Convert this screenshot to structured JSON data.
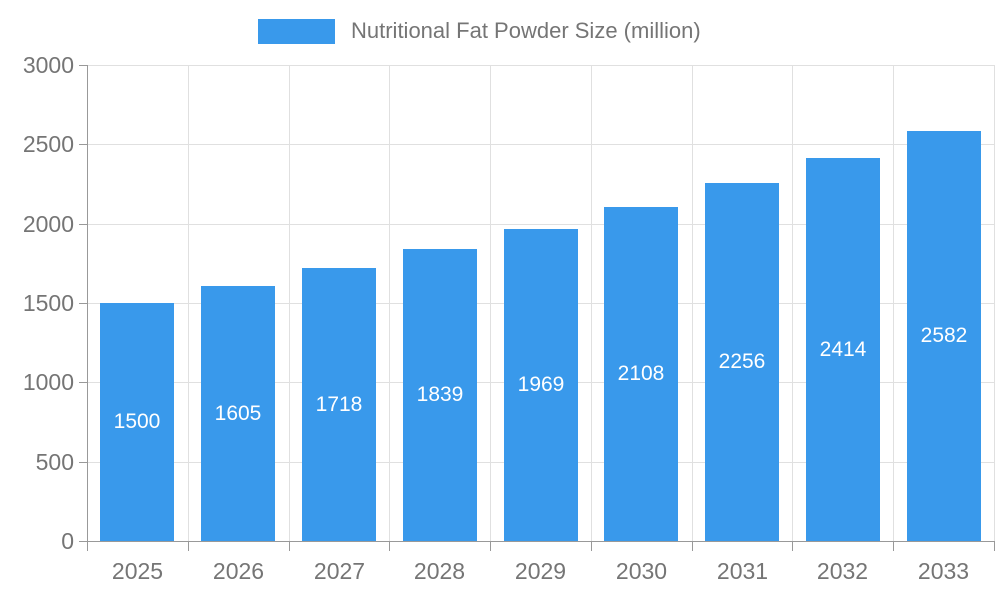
{
  "legend": {
    "label": "Nutritional Fat Powder Size (million)"
  },
  "chart_data": {
    "type": "bar",
    "title": "",
    "legend_label": "Nutritional Fat Powder Size (million)",
    "legend_position": "top",
    "categories": [
      "2025",
      "2026",
      "2027",
      "2028",
      "2029",
      "2030",
      "2031",
      "2032",
      "2033"
    ],
    "values": [
      1500,
      1605,
      1718,
      1839,
      1969,
      2108,
      2256,
      2414,
      2582
    ],
    "xlabel": "",
    "ylabel": "",
    "ylim": [
      0,
      3000
    ],
    "yticks": [
      0,
      500,
      1000,
      1500,
      2000,
      2500,
      3000
    ],
    "grid": true,
    "bar_color": "#3999eb",
    "value_label_color": "#ffffff",
    "grid_color": "#e0e0e0",
    "axis_color": "#999999",
    "text_color": "#757575",
    "background_color": "#ffffff"
  }
}
